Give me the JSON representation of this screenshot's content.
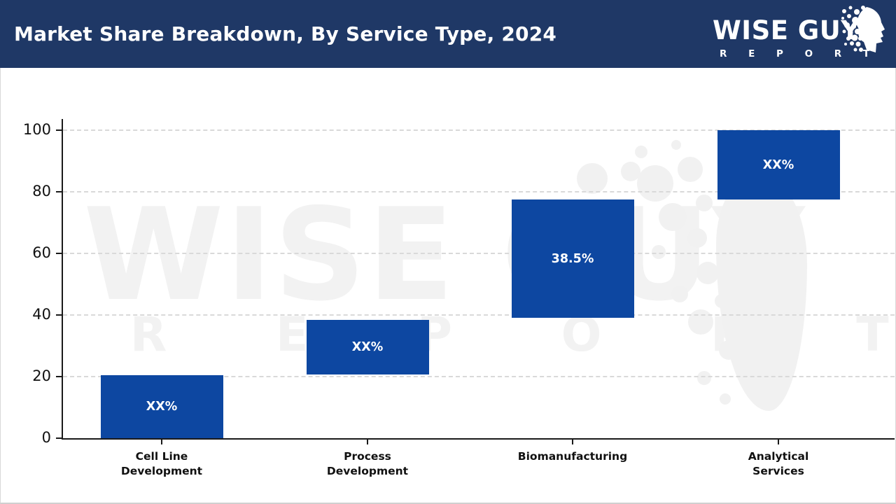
{
  "header": {
    "title": "Market Share Breakdown, By Service Type, 2024",
    "logo_line1": "WISE GUY",
    "logo_line2": "R E P O R T S"
  },
  "watermark": {
    "line1": "WISE GUY",
    "line2": "R E P O R T S"
  },
  "chart_data": {
    "type": "bar",
    "subtype": "floating-waterfall",
    "title": "Market Share Breakdown, By Service Type, 2024",
    "categories": [
      [
        "Cell Line",
        "Development"
      ],
      [
        "Process",
        "Development"
      ],
      [
        "Biomanufacturing"
      ],
      [
        "Analytical",
        "Services"
      ]
    ],
    "bars": [
      {
        "category": "Cell Line Development",
        "start": 0,
        "end": 20.5,
        "label": "XX%"
      },
      {
        "category": "Process Development",
        "start": 20.6,
        "end": 38.5,
        "label": "XX%"
      },
      {
        "category": "Biomanufacturing",
        "start": 39,
        "end": 77.4,
        "label": "38.5%"
      },
      {
        "category": "Analytical Services",
        "start": 77.5,
        "end": 100,
        "label": "XX%"
      }
    ],
    "yticks": [
      0,
      20,
      40,
      60,
      80,
      100
    ],
    "ylim": [
      0,
      103.6
    ],
    "grid": "horizontal-dashed",
    "legend": "none",
    "colors": {
      "header_bg": "#1f3866",
      "bar": "#0d47a1",
      "grid": "#d9d9d9",
      "axis": "#1a1a1a",
      "watermark": "#f2f2f2",
      "bar_label_text": "#ffffff",
      "tick_text": "#111111"
    }
  }
}
